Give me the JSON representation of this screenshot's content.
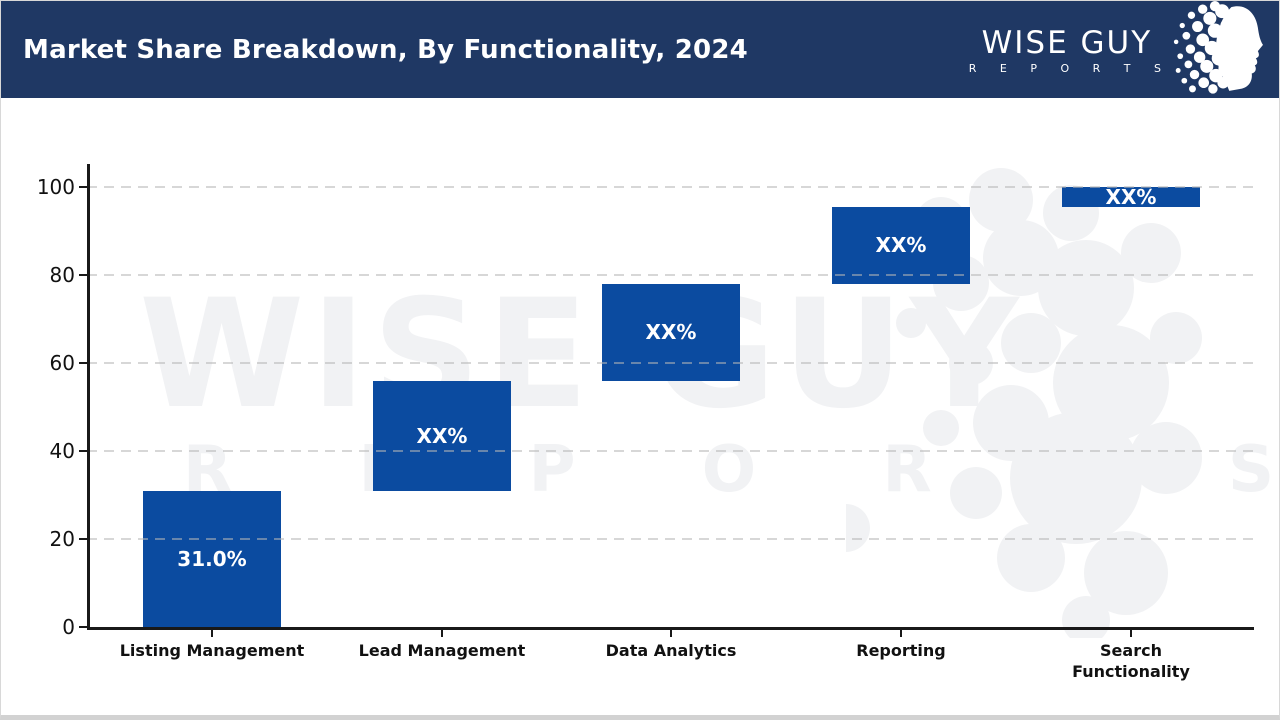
{
  "header": {
    "title": "Market Share Breakdown, By Functionality, 2024",
    "background_color": "#1F3864",
    "logo": {
      "wordmark": "WISE GUY",
      "subtitle": "R E P O R T S",
      "head_icon": "dotted-head-profile"
    }
  },
  "watermark": {
    "line1": "WISE GUY",
    "line2": "R E P O R T S",
    "head_icon": "dotted-head-profile"
  },
  "chart_data": {
    "type": "bar",
    "subtype": "waterfall",
    "title": "Market Share Breakdown, By Functionality, 2024",
    "categories": [
      "Listing Management",
      "Lead Management",
      "Data Analytics",
      "Reporting",
      "Search Functionality"
    ],
    "tick_labels": [
      "Listing Management",
      "Lead Management",
      "Data Analytics",
      "Reporting",
      "Search\nFunctionality"
    ],
    "segments": [
      {
        "category": "Listing Management",
        "start": 0,
        "end": 31,
        "value": 31,
        "label": "31.0%"
      },
      {
        "category": "Lead Management",
        "start": 31,
        "end": 56,
        "value": 25,
        "label": "XX%"
      },
      {
        "category": "Data Analytics",
        "start": 56,
        "end": 78,
        "value": 22,
        "label": "XX%"
      },
      {
        "category": "Reporting",
        "start": 78,
        "end": 95.5,
        "value": 17.5,
        "label": "XX%"
      },
      {
        "category": "Search Functionality",
        "start": 95.5,
        "end": 100,
        "value": 4.5,
        "label": "XX%"
      }
    ],
    "yticks": [
      0,
      20,
      40,
      60,
      80,
      100
    ],
    "ylim": [
      0,
      105
    ],
    "grid": "horizontal-dashed",
    "legend": "none",
    "bar_color": "#0B4BA0",
    "value_label_color": "#ffffff",
    "axis_color": "#191919",
    "xlabel": "",
    "ylabel": ""
  }
}
